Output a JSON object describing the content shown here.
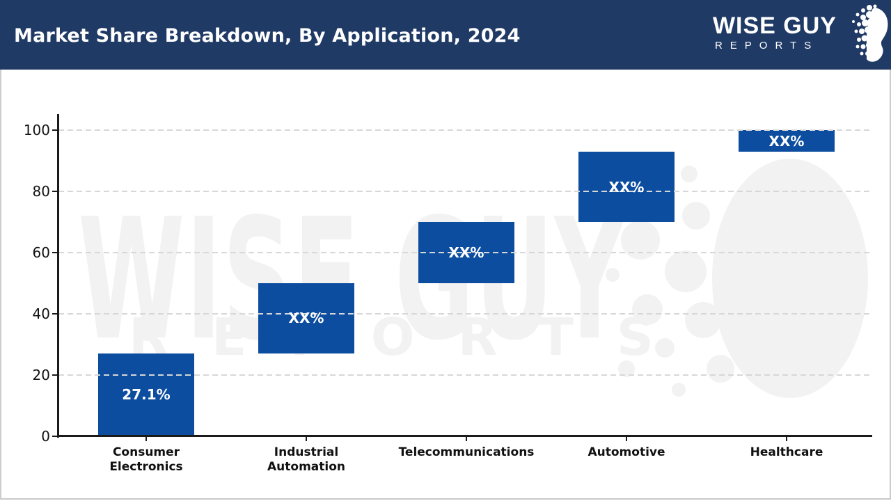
{
  "header": {
    "title": "Market Share Breakdown, By Application, 2024",
    "logo": {
      "line1": "WISE GUY",
      "line2": "REPORTS"
    }
  },
  "watermark": {
    "line1": "WISE GUY",
    "line2": "REPORTS"
  },
  "chart_data": {
    "type": "bar",
    "subtype": "floating-waterfall-segments",
    "title": "Market Share Breakdown, By Application, 2024",
    "categories": [
      "Consumer\nElectronics",
      "Industrial\nAutomation",
      "Telecommunications",
      "Automotive",
      "Healthcare"
    ],
    "segments": [
      {
        "category": "Consumer Electronics",
        "start": 0,
        "end": 27.1,
        "label": "27.1%"
      },
      {
        "category": "Industrial Automation",
        "start": 27.1,
        "end": 50,
        "label": "XX%"
      },
      {
        "category": "Telecommunications",
        "start": 50,
        "end": 70,
        "label": "XX%"
      },
      {
        "category": "Automotive",
        "start": 70,
        "end": 92.9,
        "label": "XX%"
      },
      {
        "category": "Healthcare",
        "start": 92.9,
        "end": 100,
        "label": "XX%"
      }
    ],
    "yticks": [
      0,
      20,
      40,
      60,
      80,
      100
    ],
    "ylim": [
      0,
      105
    ],
    "xlabel": "",
    "ylabel": "",
    "grid": "dashed-horizontal-over-bars",
    "legend": "none",
    "bar_color": "#0c4da0",
    "label_color_on_bar": "#ffffff"
  },
  "colors": {
    "header_bg": "#203a66",
    "bar": "#0c4da0",
    "grid": "#d7d7d7",
    "axis": "#1a1a1a",
    "watermark": "#f2f2f3"
  }
}
